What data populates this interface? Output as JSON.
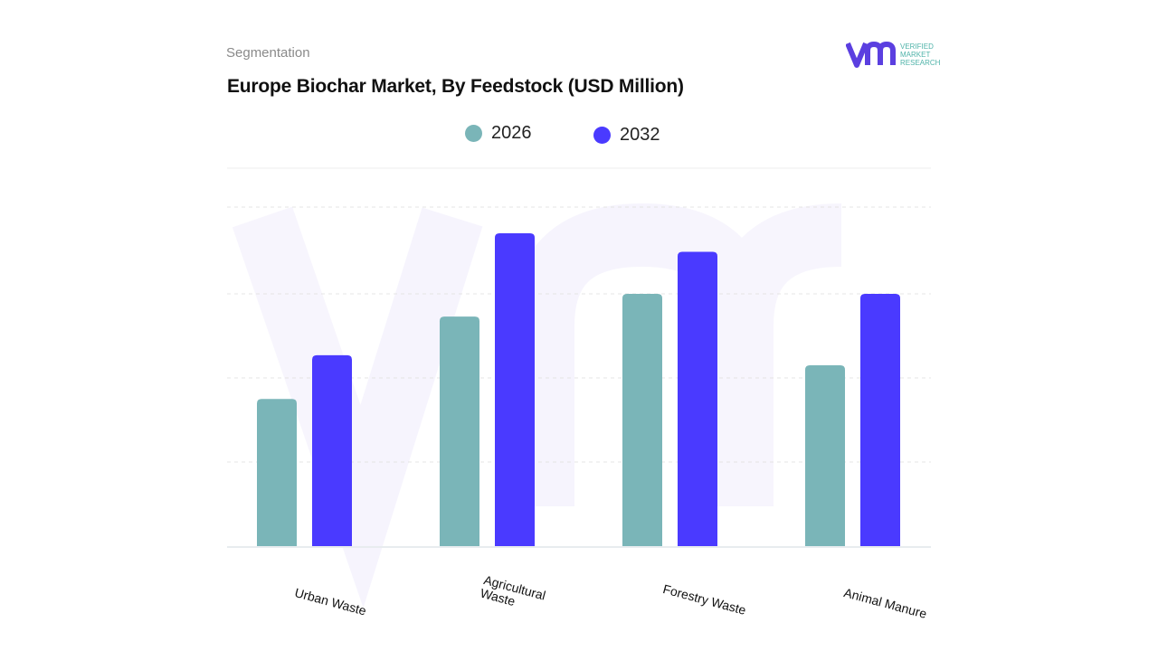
{
  "header": {
    "segment_label": "Segmentation",
    "logo_text": "VERIFIED MARKET RESEARCH"
  },
  "colors": {
    "2026": "#7ab5b8",
    "2032": "#4a3aff",
    "grid": "#e6e6e6",
    "logo_purple": "#5b3fe0",
    "logo_teal": "#4fb3a9"
  },
  "chart_data": {
    "type": "bar",
    "title": "Europe Biochar Market, By Feedstock (USD Million)",
    "categories": [
      "Urban Waste",
      "Agricultural\nWaste",
      "Forestry Waste",
      "Animal Manure"
    ],
    "series": [
      {
        "name": "2026",
        "values": [
          1.75,
          2.73,
          3.0,
          2.15
        ]
      },
      {
        "name": "2032",
        "values": [
          2.27,
          3.72,
          3.5,
          3.0
        ]
      }
    ],
    "xlabel": "",
    "ylabel": "",
    "ylim": [
      0,
      4.5
    ],
    "y_tick_labels_shown": false,
    "grid": true,
    "legend": "top-center"
  }
}
